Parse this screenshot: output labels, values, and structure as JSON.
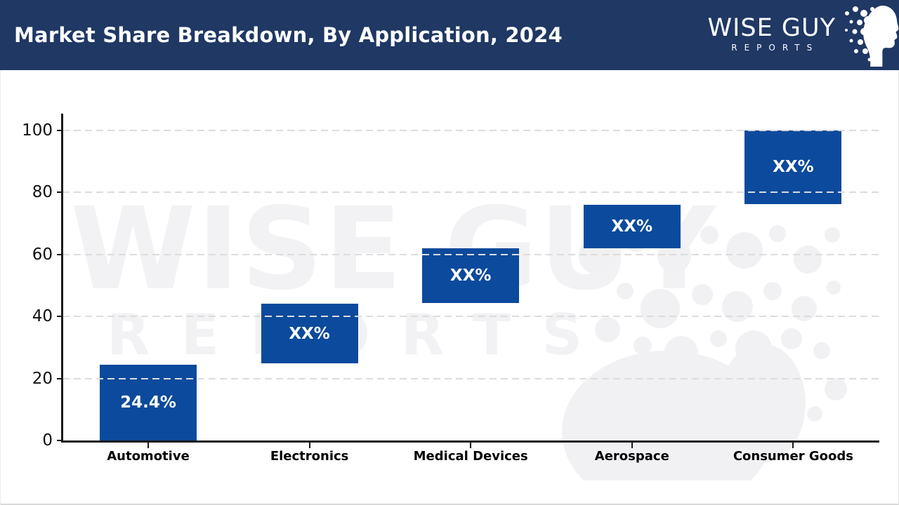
{
  "header": {
    "title": "Market Share Breakdown, By Application, 2024",
    "bg_color": "#1f3864",
    "logo": {
      "line1": "WISE GUY",
      "line2": "REPORTS"
    }
  },
  "watermark": {
    "line1": "WISE GUY",
    "line2": "REPORTS"
  },
  "chart_data": {
    "type": "bar",
    "subtype": "waterfall",
    "title": "Market Share Breakdown, By Application, 2024",
    "categories": [
      "Automotive",
      "Electronics",
      "Medical Devices",
      "Aerospace",
      "Consumer Goods"
    ],
    "segments": [
      {
        "category": "Automotive",
        "start": 0,
        "end": 24.4,
        "label": "24.4%"
      },
      {
        "category": "Electronics",
        "start": 24.8,
        "end": 44.1,
        "label": "XX%"
      },
      {
        "category": "Medical Devices",
        "start": 44.2,
        "end": 61.9,
        "label": "XX%"
      },
      {
        "category": "Aerospace",
        "start": 62.0,
        "end": 75.9,
        "label": "XX%"
      },
      {
        "category": "Consumer Goods",
        "start": 76.3,
        "end": 100.0,
        "label": "XX%"
      }
    ],
    "yticks": [
      0,
      20,
      40,
      60,
      80,
      100
    ],
    "ylim": [
      0,
      105
    ],
    "xlabel": "",
    "ylabel": "",
    "grid": {
      "horizontal": true,
      "style": "dashed",
      "color": "#dcdcdc",
      "drawn_over_bars": true
    },
    "legend": "none",
    "bar_color": "#0b4a9c",
    "bar_label_color": "#ffffff",
    "axis_color": "#1a1a1a"
  }
}
